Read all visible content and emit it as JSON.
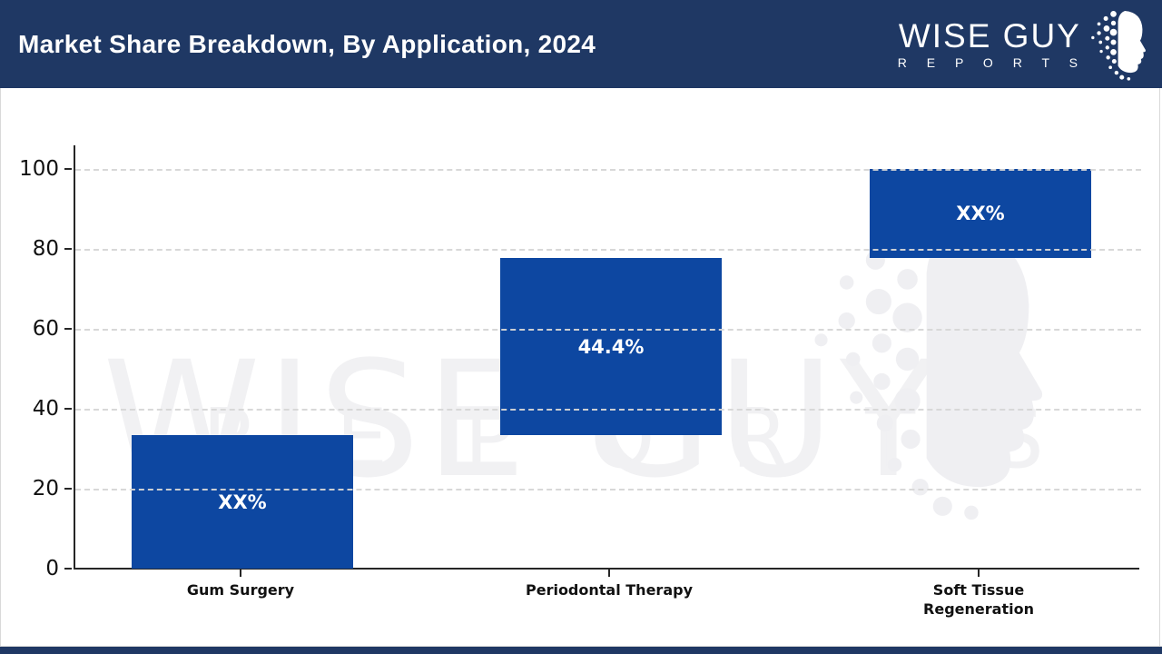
{
  "header": {
    "title": "Market Share Breakdown, By Application, 2024",
    "logo": {
      "line1": "WISE GUY",
      "line2": "R E P O R T S"
    }
  },
  "watermark": {
    "line1": "WISE GUY",
    "line2": "R E P O R T S"
  },
  "chart_data": {
    "type": "bar",
    "subtype": "floating-waterfall",
    "title": "Market Share Breakdown, By Application, 2024",
    "categories": [
      "Gum Surgery",
      "Periodontal Therapy",
      "Soft Tissue Regeneration"
    ],
    "segments": [
      {
        "category": "Gum Surgery",
        "start": 0,
        "end": 33.3,
        "height": 33.3,
        "label": "XX%"
      },
      {
        "category": "Periodontal Therapy",
        "start": 33.3,
        "end": 77.8,
        "height": 44.4,
        "label": "44.4%"
      },
      {
        "category": "Soft Tissue Regeneration",
        "start": 77.8,
        "end": 100,
        "height": 22.2,
        "label": "XX%"
      }
    ],
    "xlabel": "",
    "ylabel": "",
    "yticks": [
      0,
      20,
      40,
      60,
      80,
      100
    ],
    "ylim": [
      0,
      106
    ],
    "grid": "horizontal-dashed",
    "legend": "none",
    "bar_color": "#0d47a1",
    "bar_label_color": "#ffffff",
    "axis_color": "#262626",
    "grid_color": "#d6d6d6",
    "header_color": "#1f3864"
  }
}
